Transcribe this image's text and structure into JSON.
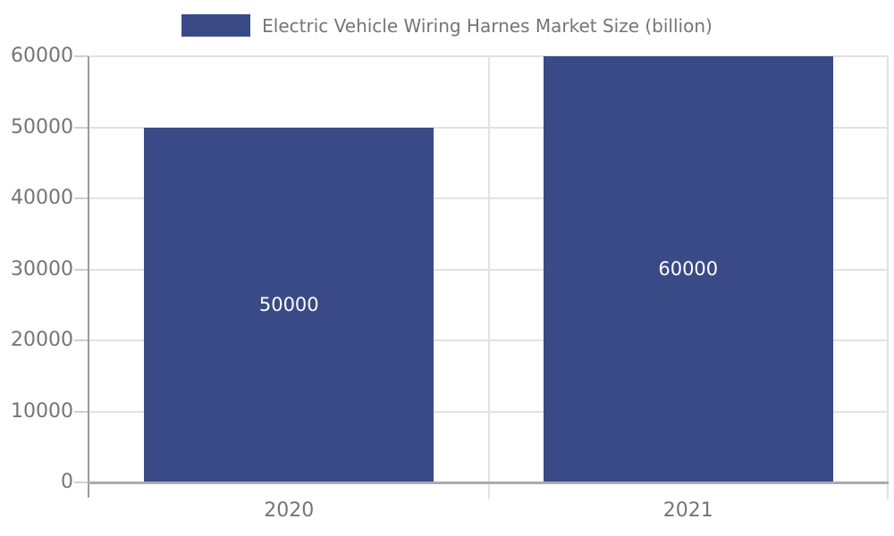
{
  "chart_data": {
    "type": "bar",
    "title": "",
    "legend_label": "Electric Vehicle Wiring Harnes Market Size (billion)",
    "legend_position": "top",
    "categories": [
      "2020",
      "2021"
    ],
    "series": [
      {
        "name": "Electric Vehicle Wiring Harnes Market Size (billion)",
        "values": [
          50000,
          60000
        ]
      }
    ],
    "value_labels": [
      "50000",
      "60000"
    ],
    "ytick_labels": [
      "0",
      "10000",
      "20000",
      "30000",
      "40000",
      "50000",
      "60000"
    ],
    "yticks": [
      0,
      10000,
      20000,
      30000,
      40000,
      50000,
      60000
    ],
    "ylim": [
      0,
      60000
    ],
    "xlabel": "",
    "ylabel": "",
    "grid": true,
    "bar_color": "#3A4A87",
    "value_label_color": "#FFFFFF"
  },
  "colors": {
    "background": "#FFFFFF",
    "grid": "#E2E2E2",
    "axis": "#9B9B9B",
    "tick": "#D0D0D0",
    "tick_text": "#757575",
    "legend_text": "#757575"
  }
}
